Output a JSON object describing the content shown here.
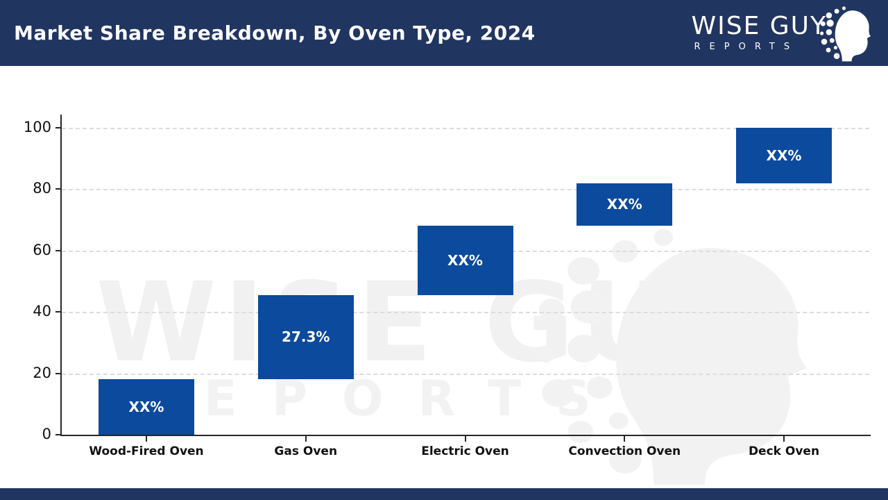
{
  "header": {
    "title": "Market Share Breakdown, By Oven Type, 2024",
    "bg_color": "#213561",
    "logo": {
      "line1": "WISE GUY",
      "line2": "REPORTS"
    }
  },
  "watermark": {
    "line1": "WISE GUY",
    "line2": "REPORTS"
  },
  "footer": {
    "bg_color": "#213561"
  },
  "chart_data": {
    "type": "bar",
    "subtype": "waterfall-floating-bars",
    "title": "Market Share Breakdown, By Oven Type, 2024",
    "categories": [
      "Wood-Fired Oven",
      "Gas Oven",
      "Electric Oven",
      "Convection Oven",
      "Deck Oven"
    ],
    "segments": [
      {
        "category": "Wood-Fired Oven",
        "start": 0,
        "end": 18.2,
        "label": "XX%"
      },
      {
        "category": "Gas Oven",
        "start": 18.2,
        "end": 45.5,
        "label": "27.3%"
      },
      {
        "category": "Electric Oven",
        "start": 45.5,
        "end": 68.2,
        "label": "XX%"
      },
      {
        "category": "Convection Oven",
        "start": 68.2,
        "end": 81.8,
        "label": "XX%"
      },
      {
        "category": "Deck Oven",
        "start": 81.8,
        "end": 100,
        "label": "XX%"
      }
    ],
    "y_ticks": [
      0,
      20,
      40,
      60,
      80,
      100
    ],
    "ylim": [
      0,
      105
    ],
    "xlabel": "",
    "ylabel": "",
    "grid": "horizontal-dashed",
    "legend": "none",
    "bar_color": "#0c4a9e",
    "bar_label_color": "#ffffff"
  }
}
